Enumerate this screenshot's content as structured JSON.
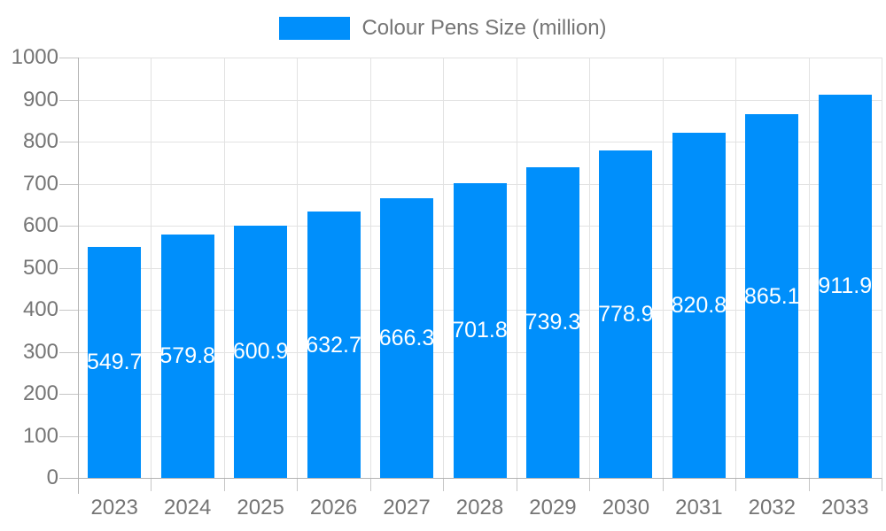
{
  "chart_data": {
    "type": "bar",
    "title": "Colour Pens Size (million)",
    "legend": {
      "position": "top-center",
      "label": "Colour Pens Size (million)",
      "marker": "rect"
    },
    "categories": [
      "2023",
      "2024",
      "2025",
      "2026",
      "2027",
      "2028",
      "2029",
      "2030",
      "2031",
      "2032",
      "2033"
    ],
    "series": [
      {
        "name": "Colour Pens Size (million)",
        "values": [
          549.7,
          579.8,
          600.9,
          632.7,
          666.3,
          701.8,
          739.3,
          778.9,
          820.8,
          865.1,
          911.9
        ]
      }
    ],
    "value_labels": [
      "549.7",
      "579.8",
      "600.9",
      "632.7",
      "666.3",
      "701.8",
      "739.3",
      "778.9",
      "820.8",
      "865.1",
      "911.9"
    ],
    "xlabel": "",
    "ylabel": "",
    "ylim": [
      0,
      1000
    ],
    "yticks": [
      0,
      100,
      200,
      300,
      400,
      500,
      600,
      700,
      800,
      900,
      1000
    ],
    "grid": "horizontal-and-vertical",
    "colors": {
      "bar": "#008FFB",
      "grid": "#E2E2E2",
      "axis": "#B3B3B3",
      "tick": "#C6C6C6",
      "label": "#757575",
      "value_label": "#FFFFFF",
      "background": "#FFFFFF"
    }
  }
}
